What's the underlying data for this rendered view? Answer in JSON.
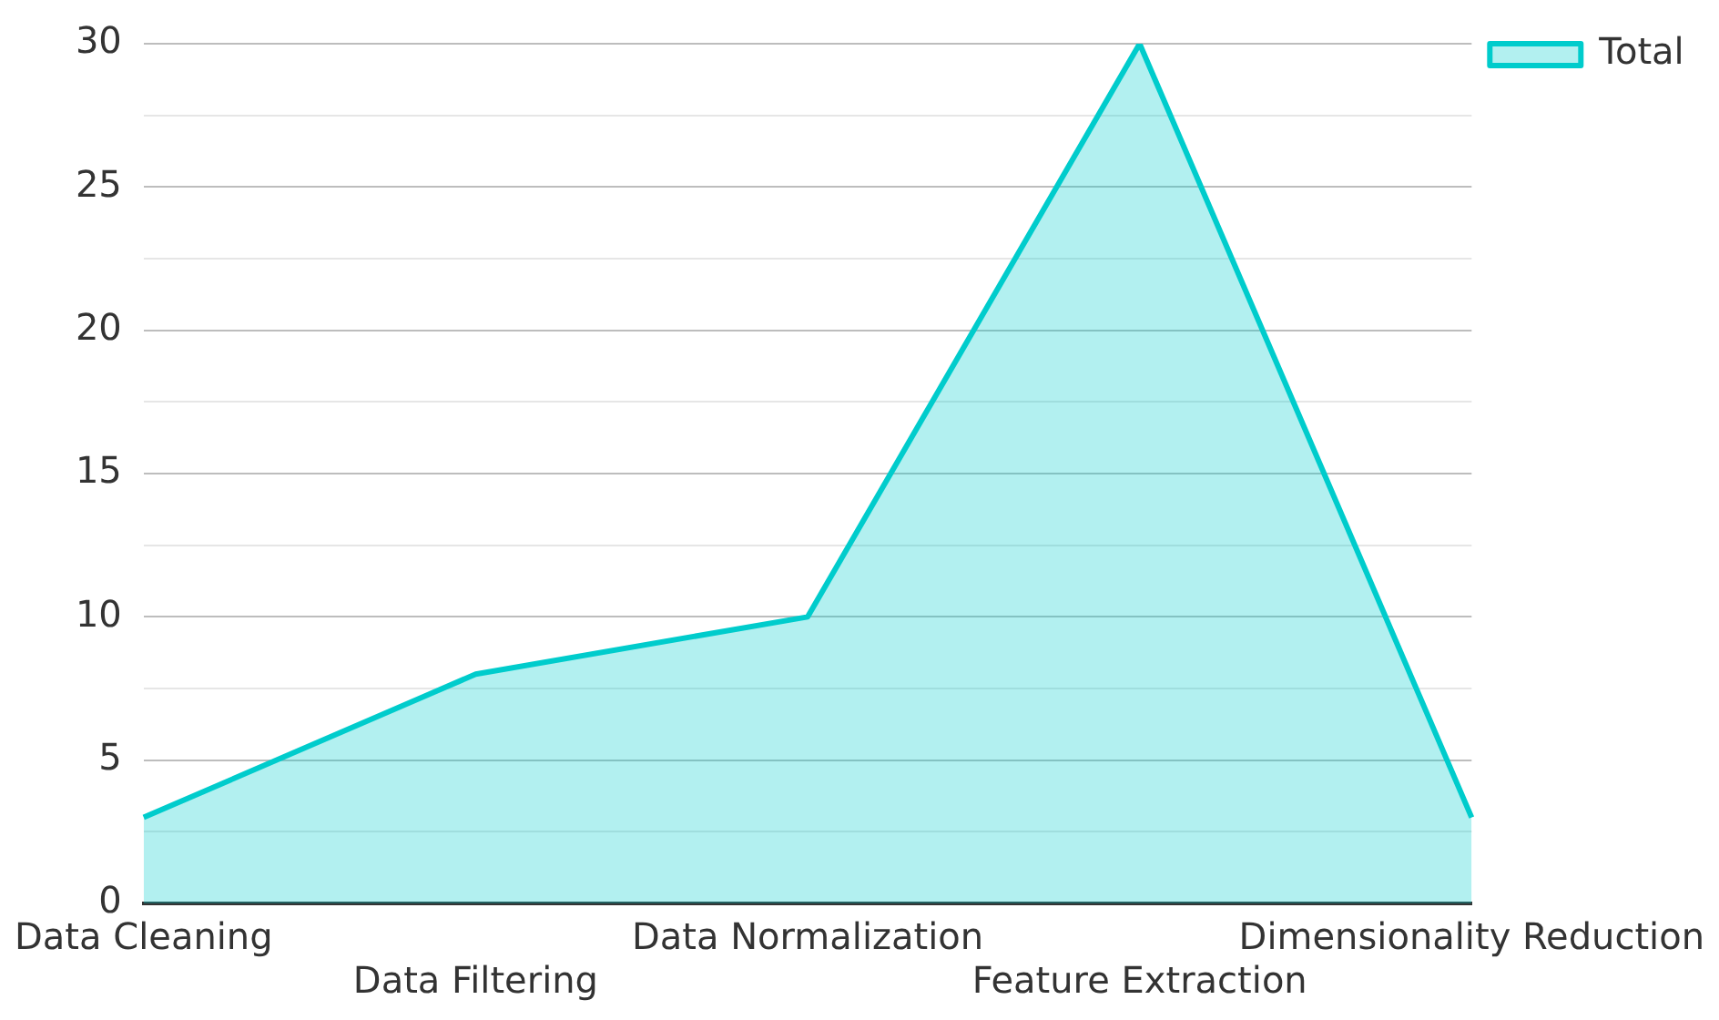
{
  "chart_data": {
    "type": "area",
    "categories": [
      "Data Cleaning",
      "Data Filtering",
      "Data Normalization",
      "Feature Extraction",
      "Dimensionality Reduction"
    ],
    "series": [
      {
        "name": "Total",
        "color": "#00cccc",
        "values": [
          3,
          8,
          10,
          30,
          3
        ]
      }
    ],
    "ylim": [
      0,
      30
    ],
    "yticks": [
      0,
      {
        "value": 2.5,
        "label": null
      },
      5,
      {
        "value": 7.5,
        "label": null
      },
      10,
      {
        "value": 12.5,
        "label": null
      },
      15,
      {
        "value": 17.5,
        "label": null
      },
      20,
      {
        "value": 22.5,
        "label": null
      },
      25,
      {
        "value": 27.5,
        "label": null
      },
      30
    ],
    "grid": "y",
    "legend": "top right",
    "marker": "none"
  }
}
